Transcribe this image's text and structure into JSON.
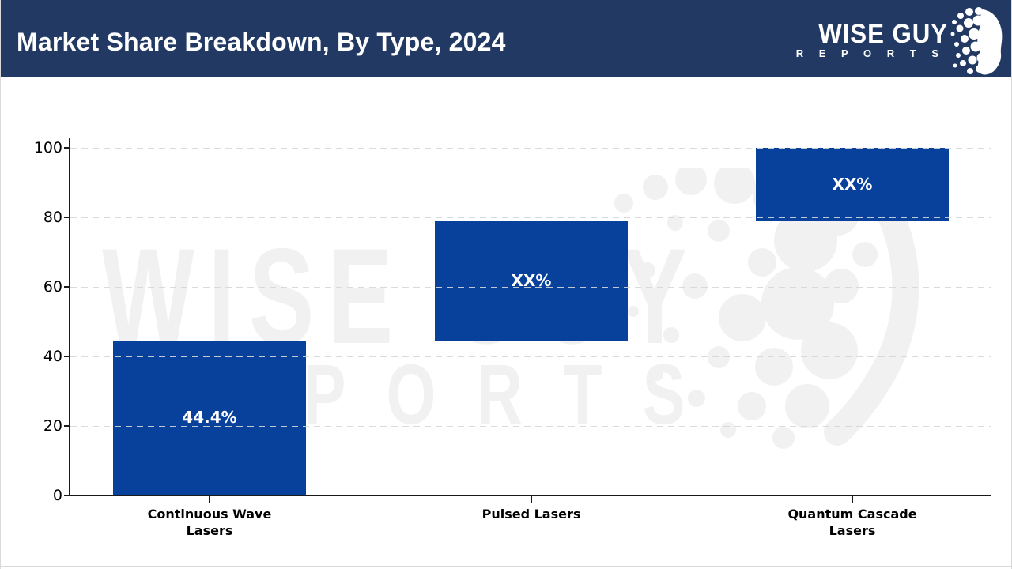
{
  "header": {
    "title": "Market Share Breakdown, By Type, 2024",
    "logo": {
      "line1": "WISE GUY",
      "line2": "R E P O R T S"
    }
  },
  "watermark": {
    "line1": "WISE GUY",
    "line2": "REPORTS"
  },
  "chart_data": {
    "type": "bar",
    "variant": "floating_range_bars",
    "title": "Market Share Breakdown, By Type, 2024",
    "categories": [
      "Continuous Wave\nLasers",
      "Pulsed Lasers",
      "Quantum Cascade\nLasers"
    ],
    "ranges": [
      [
        0,
        44.4
      ],
      [
        44.4,
        78.8
      ],
      [
        78.8,
        100
      ]
    ],
    "bar_labels": [
      "44.4%",
      "XX%",
      "XX%"
    ],
    "ylim": [
      0,
      100
    ],
    "yticks": [
      0,
      20,
      40,
      60,
      80,
      100
    ],
    "xlabel": "",
    "ylabel": "",
    "grid": "horizontal_dashed",
    "legend": "none",
    "bar_color": "#08419C",
    "bar_label_color": "#FFFFFF"
  },
  "colors": {
    "header_bg": "#223A63",
    "grid": "#D6D6D6",
    "axis": "#1A1A1A",
    "watermark": "#F1F1F2",
    "page_bg": "#FFFFFF"
  }
}
